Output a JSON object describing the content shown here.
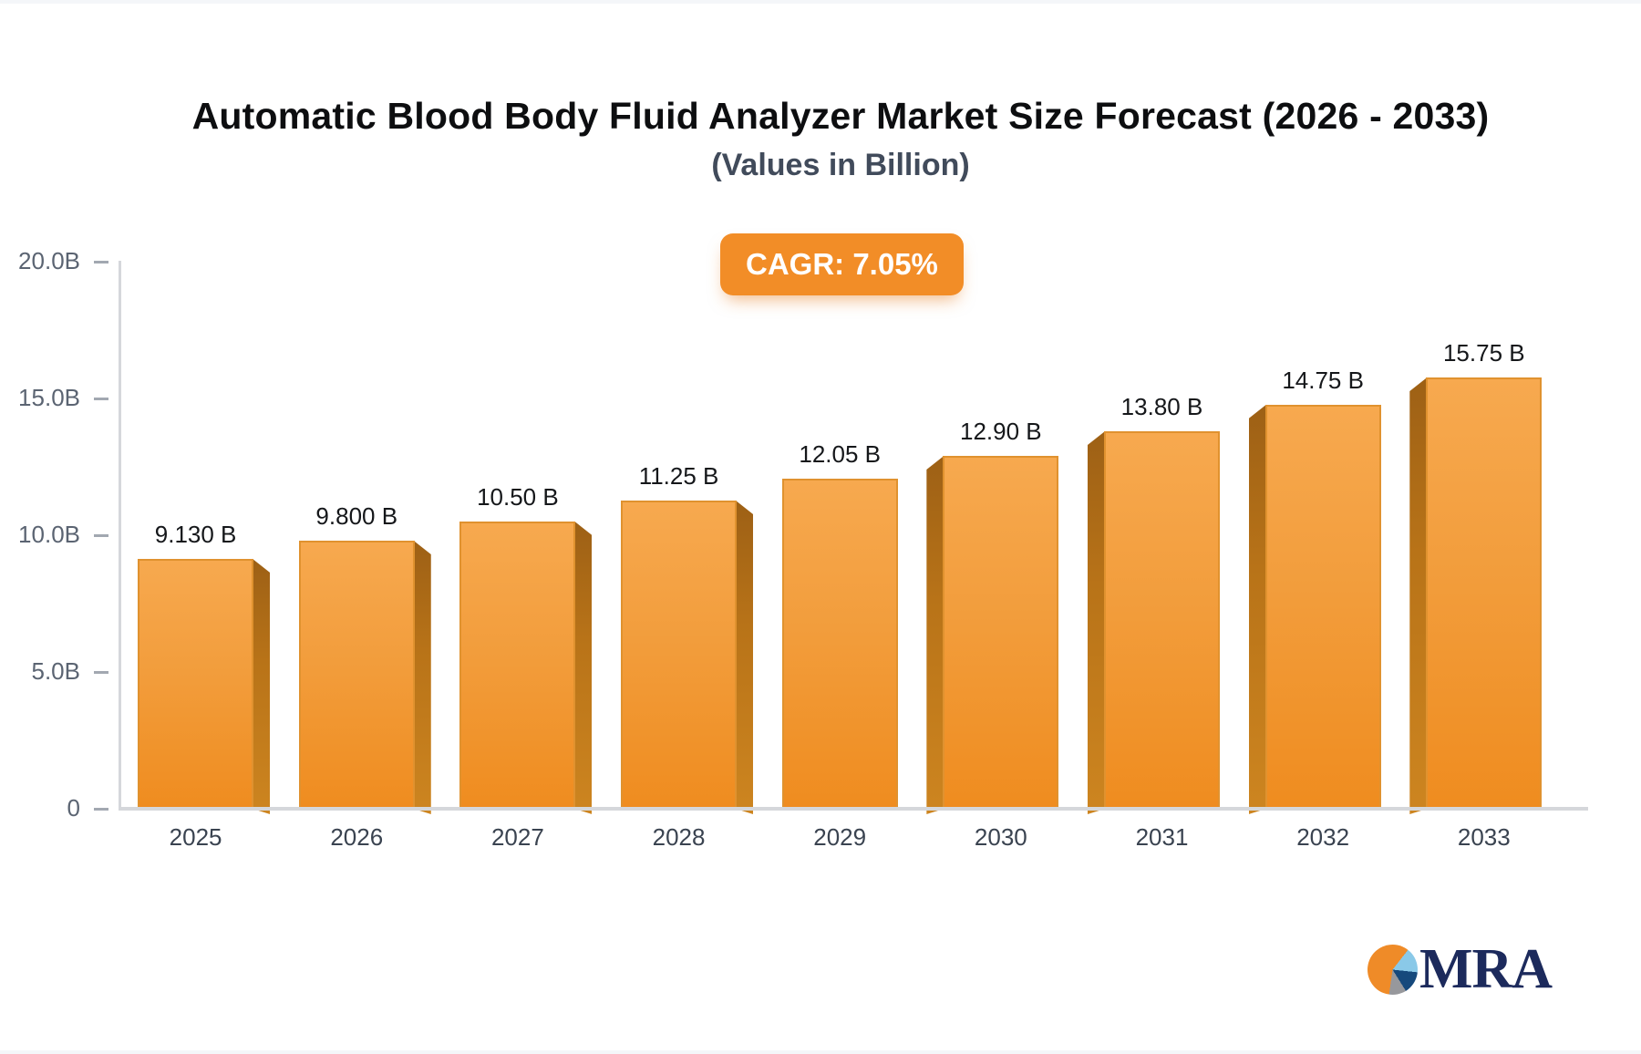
{
  "page": {
    "title": "Automatic Blood Body Fluid Analyzer Market Size Forecast (2026 - 2033)",
    "subtitle": "(Values in Billion)",
    "cagr_badge_label": "CAGR: 7.05%"
  },
  "chart_data": {
    "type": "bar",
    "title": "Automatic Blood Body Fluid Analyzer Market Size Forecast (2026 - 2033)",
    "subtitle": "(Values in Billion)",
    "annotation": "CAGR: 7.05%",
    "cagr_percent": 7.05,
    "unit": "Billion",
    "categories": [
      "2025",
      "2026",
      "2027",
      "2028",
      "2029",
      "2030",
      "2031",
      "2032",
      "2033"
    ],
    "values": [
      9.13,
      9.8,
      10.5,
      11.25,
      12.05,
      12.9,
      13.8,
      14.75,
      15.75
    ],
    "value_labels": [
      "9.130 B",
      "9.800 B",
      "10.50 B",
      "11.25 B",
      "12.05 B",
      "12.90 B",
      "13.80 B",
      "14.75 B",
      "15.75 B"
    ],
    "ylim": [
      0,
      20
    ],
    "ytick_values": [
      20,
      15,
      10,
      5,
      0
    ],
    "ytick_labels": [
      "20.0B",
      "15.0B",
      "10.0B",
      "5.0B",
      "0"
    ],
    "grid": false,
    "legend": false,
    "bar_style": "3d-extruded",
    "colors": {
      "bar_face_top": "#f7a94f",
      "bar_face_bottom": "#ef8c1f",
      "bar_side": "#b87318",
      "bar_border": "#e0922f",
      "badge_background": "#f28d27",
      "axis_line": "#d5d7db",
      "tick_label": "#5b6472",
      "category_label": "#3a4350",
      "value_label": "#15171a"
    }
  },
  "logo": {
    "text": "MRA",
    "pie_icon_colors": [
      "#ef8b28",
      "#8ac9e8",
      "#16497c",
      "#97989c"
    ],
    "text_color": "#1c2a5c"
  }
}
